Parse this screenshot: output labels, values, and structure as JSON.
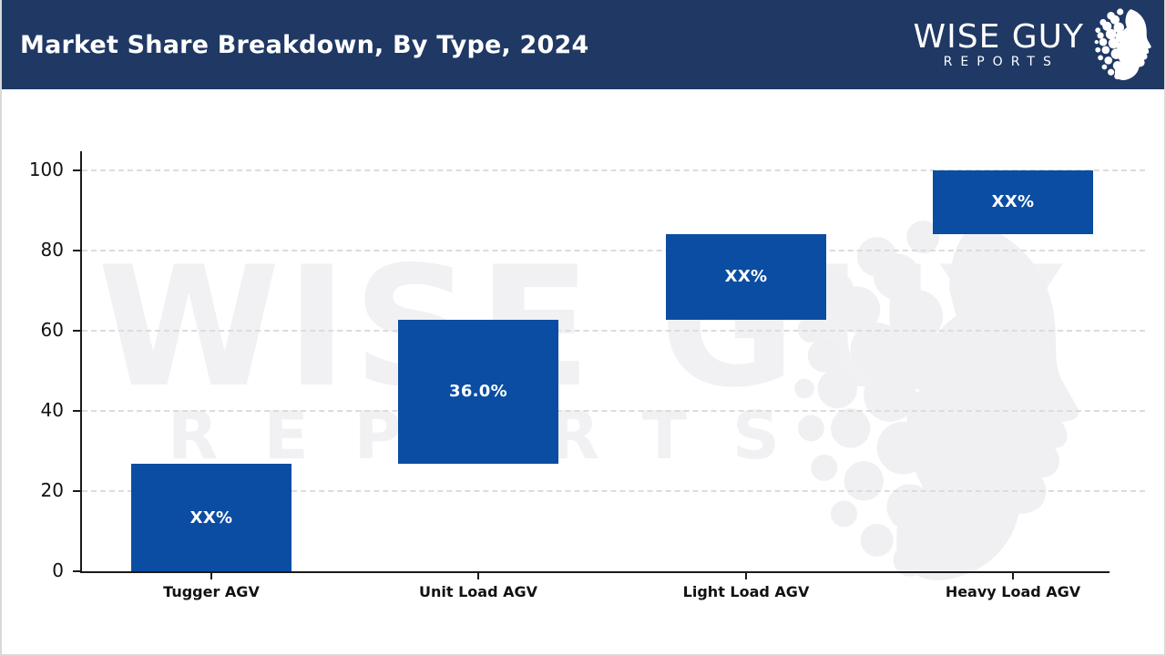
{
  "header": {
    "title": "Market Share Breakdown, By Type, 2024",
    "logo": {
      "line1": "WISE GUY",
      "line2": "REPORTS"
    }
  },
  "watermark": {
    "line1": "WISE GUY",
    "line2": "REPORTS"
  },
  "colors": {
    "header_bg": "#1f3864",
    "bar": "#0b4da2",
    "axis": "#1a1a1a",
    "gridline": "#dcdcdc",
    "watermark": "#f1f1f4",
    "bar_label_text": "#ffffff"
  },
  "chart_data": {
    "type": "bar",
    "subtype": "waterfall",
    "title": "Market Share Breakdown, By Type, 2024",
    "categories": [
      "Tugger AGV",
      "Unit Load AGV",
      "Light Load AGV",
      "Heavy Load AGV"
    ],
    "segments": [
      {
        "category": "Tugger AGV",
        "start": 0,
        "end": 26.8,
        "value": 26.8,
        "label": "XX%"
      },
      {
        "category": "Unit Load AGV",
        "start": 26.8,
        "end": 62.8,
        "value": 36.0,
        "label": "36.0%"
      },
      {
        "category": "Light Load AGV",
        "start": 62.8,
        "end": 84.2,
        "value": 21.4,
        "label": "XX%"
      },
      {
        "category": "Heavy Load AGV",
        "start": 84.2,
        "end": 100,
        "value": 15.8,
        "label": "XX%"
      }
    ],
    "yticks": [
      0,
      20,
      40,
      60,
      80,
      100
    ],
    "ylim": [
      0,
      100
    ],
    "xlabel": "",
    "ylabel": "",
    "grid": "horizontal-dashed",
    "legend": "none"
  }
}
